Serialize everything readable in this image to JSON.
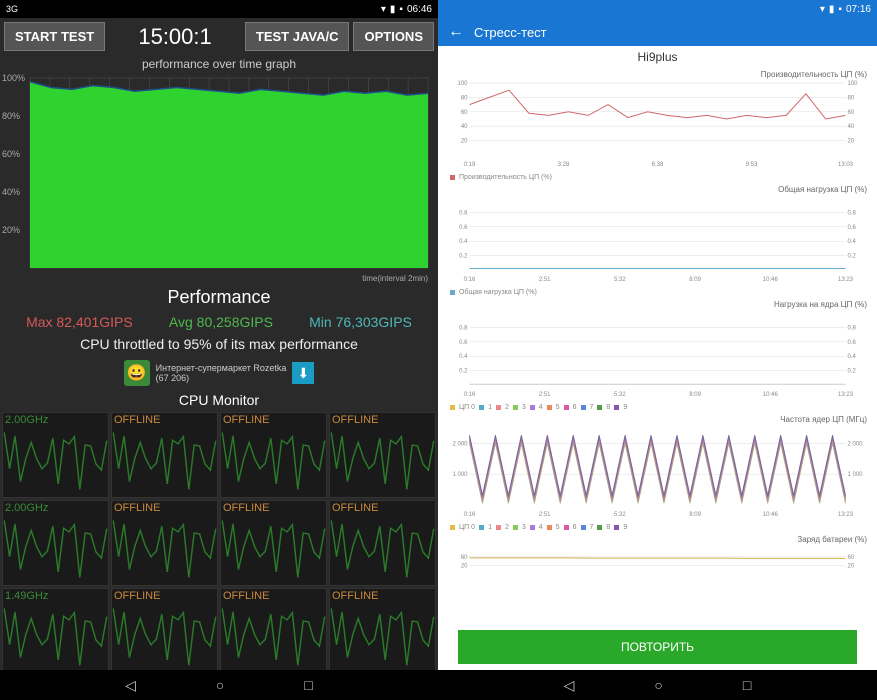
{
  "left": {
    "status": {
      "network": "3G",
      "time": "06:46"
    },
    "buttons": {
      "start": "START TEST",
      "testjava": "TEST JAVA/C",
      "options": "OPTIONS"
    },
    "timer": "15:00:1",
    "graph_title": "performance over time graph",
    "graph_footer": "time(interval 2min)",
    "main_graph": {
      "y_labels": [
        "100%",
        "80%",
        "60%",
        "40%",
        "20%"
      ],
      "fill_color": "#2fd32f",
      "line_color": "#1e4f8a",
      "background": "#2a2a2a",
      "grid": "#555",
      "data": [
        98,
        95,
        94,
        96,
        95,
        93,
        94,
        95,
        94,
        93,
        92,
        94,
        93,
        92,
        91,
        93,
        92,
        93,
        91,
        92
      ]
    },
    "perf": {
      "title": "Performance",
      "max": "Max 82,401GIPS",
      "avg": "Avg 80,258GIPS",
      "min": "Min 76,303GIPS",
      "throttle": "CPU throttled to 95% of its max performance"
    },
    "ad": {
      "text": "Интернет-супермаркет Rozetka",
      "sub": "(67 206)"
    },
    "cpu_monitor": {
      "title": "CPU Monitor",
      "cells": [
        {
          "label": "2.00GHz",
          "color": "green"
        },
        {
          "label": "OFFLINE",
          "color": "orange"
        },
        {
          "label": "OFFLINE",
          "color": "orange"
        },
        {
          "label": "OFFLINE",
          "color": "orange"
        },
        {
          "label": "2.00GHz",
          "color": "green"
        },
        {
          "label": "OFFLINE",
          "color": "orange"
        },
        {
          "label": "OFFLINE",
          "color": "orange"
        },
        {
          "label": "OFFLINE",
          "color": "orange"
        },
        {
          "label": "1.49GHz",
          "color": "green"
        },
        {
          "label": "OFFLINE",
          "color": "orange"
        },
        {
          "label": "OFFLINE",
          "color": "orange"
        },
        {
          "label": "OFFLINE",
          "color": "orange"
        }
      ],
      "line_color": "#2a7a2a"
    }
  },
  "right": {
    "status": {
      "time": "07:16"
    },
    "header": "Стресс-тест",
    "device": "Hi9plus",
    "charts": [
      {
        "title": "Производительность ЦП (%)",
        "ylim": [
          0,
          100
        ],
        "ysteps": [
          20,
          40,
          60,
          80,
          100
        ],
        "xlabels": [
          "0:19",
          "3:28",
          "6:38",
          "9:53",
          "13:03"
        ],
        "series": [
          {
            "color": "#d06868",
            "data": [
              70,
              80,
              90,
              58,
              55,
              60,
              55,
              70,
              52,
              60,
              55,
              52,
              55,
              50,
              55,
              52,
              55,
              85,
              50,
              55
            ]
          }
        ],
        "legend": "Производительность ЦП (%)",
        "legend_color": "#d06868"
      },
      {
        "title": "Общая нагрузка ЦП (%)",
        "ylim": [
          0,
          1
        ],
        "ysteps": [
          0.2,
          0.4,
          0.6,
          0.8
        ],
        "xlabels": [
          "0:16",
          "2:51",
          "5:32",
          "8:09",
          "10:46",
          "13:23"
        ],
        "series": [
          {
            "color": "#6ac",
            "data": [
              0.02,
              0.02,
              0.02,
              0.02,
              0.02,
              0.02,
              0.02,
              0.02,
              0.02,
              0.02,
              0.02,
              0.02,
              0.02,
              0.02,
              0.02,
              0.02,
              0.02,
              0.02,
              0.02,
              0.02
            ]
          }
        ],
        "legend": "Общая нагрузка ЦП (%)",
        "legend_color": "#6ac"
      },
      {
        "title": "Нагрузка на ядра ЦП (%)",
        "ylim": [
          0,
          1
        ],
        "ysteps": [
          0.2,
          0.4,
          0.6,
          0.8
        ],
        "xlabels": [
          "0:16",
          "2:51",
          "5:32",
          "8:09",
          "10:46",
          "13:23"
        ],
        "series": [
          {
            "color": "#ccc",
            "data": [
              0.01,
              0.01,
              0.01,
              0.01,
              0.01,
              0.01,
              0.01,
              0.01,
              0.01,
              0.01,
              0.01,
              0.01,
              0.01,
              0.01,
              0.01,
              0.01,
              0.01,
              0.01,
              0.01,
              0.01
            ]
          }
        ],
        "legend_multi": [
          "ЦП 0",
          "1",
          "2",
          "3",
          "4",
          "5",
          "6",
          "7",
          "8",
          "9"
        ],
        "legend_colors": [
          "#e5b84a",
          "#5ac",
          "#e88",
          "#8c5",
          "#a7d",
          "#e85",
          "#d5a",
          "#58d",
          "#594",
          "#85a"
        ]
      },
      {
        "title": "Частота ядер ЦП (МГц)",
        "ylim": [
          0,
          2500
        ],
        "ysteps": [
          1000,
          2000
        ],
        "xlabels": [
          "0:16",
          "2:51",
          "5:32",
          "8:09",
          "10:46",
          "13:23"
        ],
        "series_multi": true,
        "colors": [
          "#e5b84a",
          "#5ac",
          "#e88",
          "#8c5",
          "#a7d",
          "#e85",
          "#d5a",
          "#58d",
          "#594",
          "#85a"
        ],
        "legend_multi": [
          "ЦП 0",
          "1",
          "2",
          "3",
          "4",
          "5",
          "6",
          "7",
          "8",
          "9"
        ],
        "legend_colors": [
          "#e5b84a",
          "#5ac",
          "#e88",
          "#8c5",
          "#a7d",
          "#e85",
          "#d5a",
          "#58d",
          "#594",
          "#85a"
        ]
      },
      {
        "title": "Заряд батареи (%)",
        "ylim": [
          0,
          100
        ],
        "ysteps": [
          20,
          60
        ],
        "xlabels": [],
        "series": [
          {
            "color": "#d0b050",
            "data": [
              55,
              55,
              55,
              55,
              55,
              55,
              54,
              54,
              54,
              54,
              54,
              54,
              54,
              54,
              53,
              53,
              53,
              53,
              53,
              53
            ]
          }
        ]
      }
    ],
    "repeat": "ПОВТОРИТЬ"
  }
}
